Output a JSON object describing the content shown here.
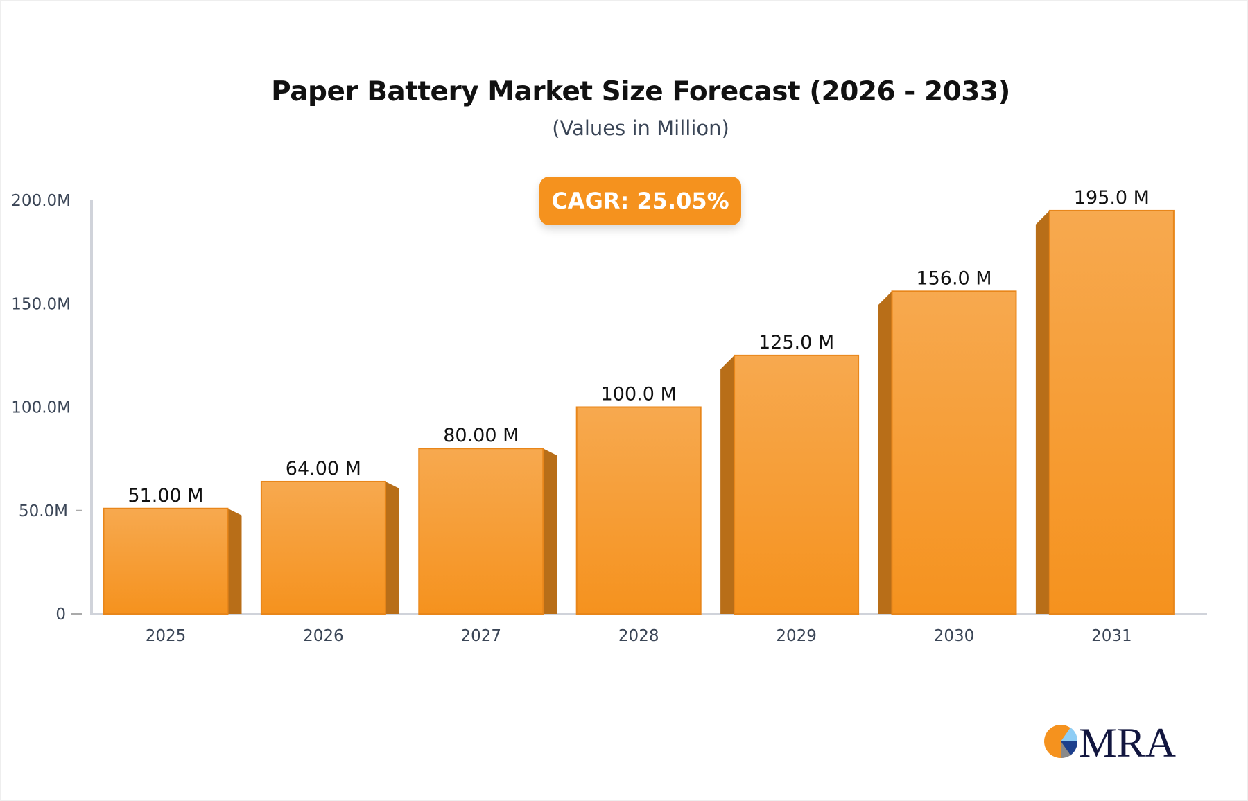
{
  "title": "Paper Battery Market Size Forecast (2026 - 2033)",
  "subtitle": "(Values in Million)",
  "cagr_label": "CAGR: 25.05%",
  "logo_text": "MRA",
  "colors": {
    "bar_front": "#f5921e",
    "bar_front_top": "#f7a94f",
    "bar_side": "#b86e18",
    "axis": "#d0d3da",
    "badge": "#f5921e"
  },
  "chart_data": {
    "type": "bar",
    "title": "Paper Battery Market Size Forecast (2026 - 2033)",
    "subtitle": "(Values in Million)",
    "categories": [
      "2025",
      "2026",
      "2027",
      "2028",
      "2029",
      "2030",
      "2031"
    ],
    "values": [
      51,
      64,
      80,
      100,
      125,
      156,
      195
    ],
    "data_labels": [
      "51.00 M",
      "64.00 M",
      "80.00 M",
      "100.0 M",
      "125.0 M",
      "156.0 M",
      "195.0 M"
    ],
    "ylim": [
      0,
      200
    ],
    "yticks": [
      0,
      50,
      100,
      150,
      200
    ],
    "ytick_labels": [
      "0",
      "50.0M",
      "100.0M",
      "150.0M",
      "200.0M"
    ],
    "xlabel": "",
    "ylabel": "",
    "grid": false,
    "legend": "none"
  }
}
